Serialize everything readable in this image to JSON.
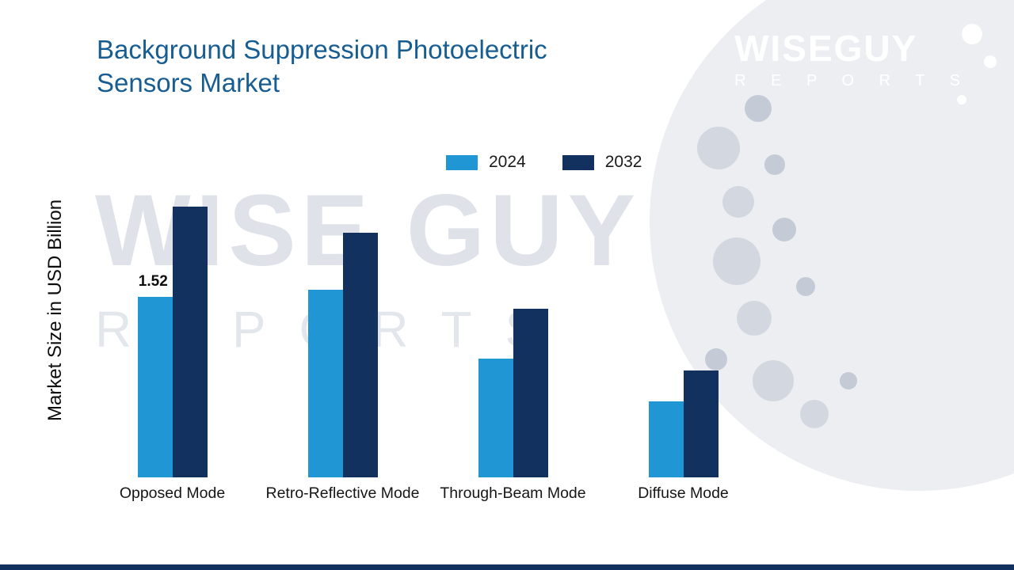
{
  "title": "Background Suppression Photoelectric Sensors Market",
  "ylabel": "Market Size in USD Billion",
  "logo": {
    "line1": "WISEGUY",
    "line2": "R E P O R T S"
  },
  "watermark": {
    "line1": "WISE GUY",
    "line2": "REPORTS"
  },
  "colors": {
    "series_2024": "#2196d4",
    "series_2032": "#12315f",
    "title": "#175d92",
    "bottom_bar": "#12315f"
  },
  "legend": [
    {
      "label": "2024",
      "color": "#2196d4"
    },
    {
      "label": "2032",
      "color": "#12315f"
    }
  ],
  "chart_data": {
    "type": "bar",
    "title": "Background Suppression Photoelectric Sensors Market",
    "xlabel": "",
    "ylabel": "Market Size in USD Billion",
    "categories": [
      "Opposed Mode",
      "Retro-Reflective Mode",
      "Through-Beam Mode",
      "Diffuse Mode"
    ],
    "series": [
      {
        "name": "2024",
        "color": "#2196d4",
        "values": [
          1.52,
          1.58,
          1.0,
          0.64
        ]
      },
      {
        "name": "2032",
        "color": "#12315f",
        "values": [
          2.28,
          2.06,
          1.42,
          0.9
        ]
      }
    ],
    "annotations": [
      {
        "series": "2024",
        "category": "Opposed Mode",
        "text": "1.52"
      }
    ],
    "ylim": [
      0,
      2.4
    ],
    "grid": false,
    "legend_position": "top"
  }
}
